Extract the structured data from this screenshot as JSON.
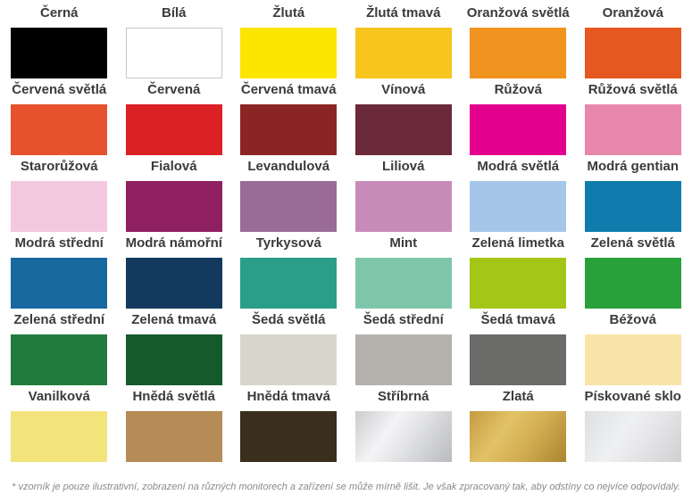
{
  "page": {
    "background": "#ffffff",
    "label_text_color": "#3b3b3b",
    "footnote": "* vzorník je pouze ilustrativní, zobrazení na různých monitorech a zařízení se může mírně lišit. Je však zpracovaný tak, aby odstíny co nejvíce odpovídaly."
  },
  "swatches": [
    {
      "name": "Černá",
      "color": "#000000"
    },
    {
      "name": "Bílá",
      "color": "#ffffff",
      "border": "#c9c9c9"
    },
    {
      "name": "Žlutá",
      "color": "#fce500"
    },
    {
      "name": "Žlutá tmavá",
      "color": "#f7c51d"
    },
    {
      "name": "Oranžová světlá",
      "color": "#f0931f"
    },
    {
      "name": "Oranžová",
      "color": "#e5581f"
    },
    {
      "name": "Červená světlá",
      "color": "#e6512e"
    },
    {
      "name": "Červená",
      "color": "#db2026"
    },
    {
      "name": "Červená tmavá",
      "color": "#8b2523"
    },
    {
      "name": "Vínová",
      "color": "#6b2a3a"
    },
    {
      "name": "Růžová",
      "color": "#e4008e"
    },
    {
      "name": "Růžová světlá",
      "color": "#e887ac"
    },
    {
      "name": "Starorůžová",
      "color": "#f4c9df"
    },
    {
      "name": "Fialová",
      "color": "#8e2061"
    },
    {
      "name": "Levandulová",
      "color": "#9a6b96"
    },
    {
      "name": "Liliová",
      "color": "#c88bb9"
    },
    {
      "name": "Modrá světlá",
      "color": "#a4c7e9"
    },
    {
      "name": "Modrá gentian",
      "color": "#0f7cad"
    },
    {
      "name": "Modrá střední",
      "color": "#17699f"
    },
    {
      "name": "Modrá námořní",
      "color": "#133a5e"
    },
    {
      "name": "Tyrkysová",
      "color": "#2b9e8a"
    },
    {
      "name": "Mint",
      "color": "#7ec6aa"
    },
    {
      "name": "Zelená limetka",
      "color": "#a4c717"
    },
    {
      "name": "Zelená světlá",
      "color": "#28a13b"
    },
    {
      "name": "Zelená střední",
      "color": "#207c3c"
    },
    {
      "name": "Zelená tmavá",
      "color": "#155a2b"
    },
    {
      "name": "Šedá světlá",
      "color": "#d7d5cc"
    },
    {
      "name": "Šedá střední",
      "color": "#b3b2ac"
    },
    {
      "name": "Šedá tmavá",
      "color": "#6b6b69"
    },
    {
      "name": "Béžová",
      "color": "#f8e4a8"
    },
    {
      "name": "Vanilková",
      "color": "#f2e37a"
    },
    {
      "name": "Hnědá světlá",
      "color": "#b68b56"
    },
    {
      "name": "Hnědá tmavá",
      "color": "#3a2e1c"
    },
    {
      "name": "Stříbrná",
      "color": "#d9dadc",
      "gradient": "linear-gradient(125deg, #cbccce 0%, #f4f4f6 35%, #e3e4e6 55%, #b9babd 100%)"
    },
    {
      "name": "Zlatá",
      "color": "#c9a23c",
      "gradient": "linear-gradient(125deg, #c59c40 0%, #e2c267 35%, #d4af53 60%, #ab8530 100%)"
    },
    {
      "name": "Pískované sklo",
      "color": "#e2e3e5",
      "gradient": "linear-gradient(125deg, #dedfe1 0%, #eff0f2 40%, #e6e7e9 60%, #cfd0d2 100%)"
    }
  ]
}
